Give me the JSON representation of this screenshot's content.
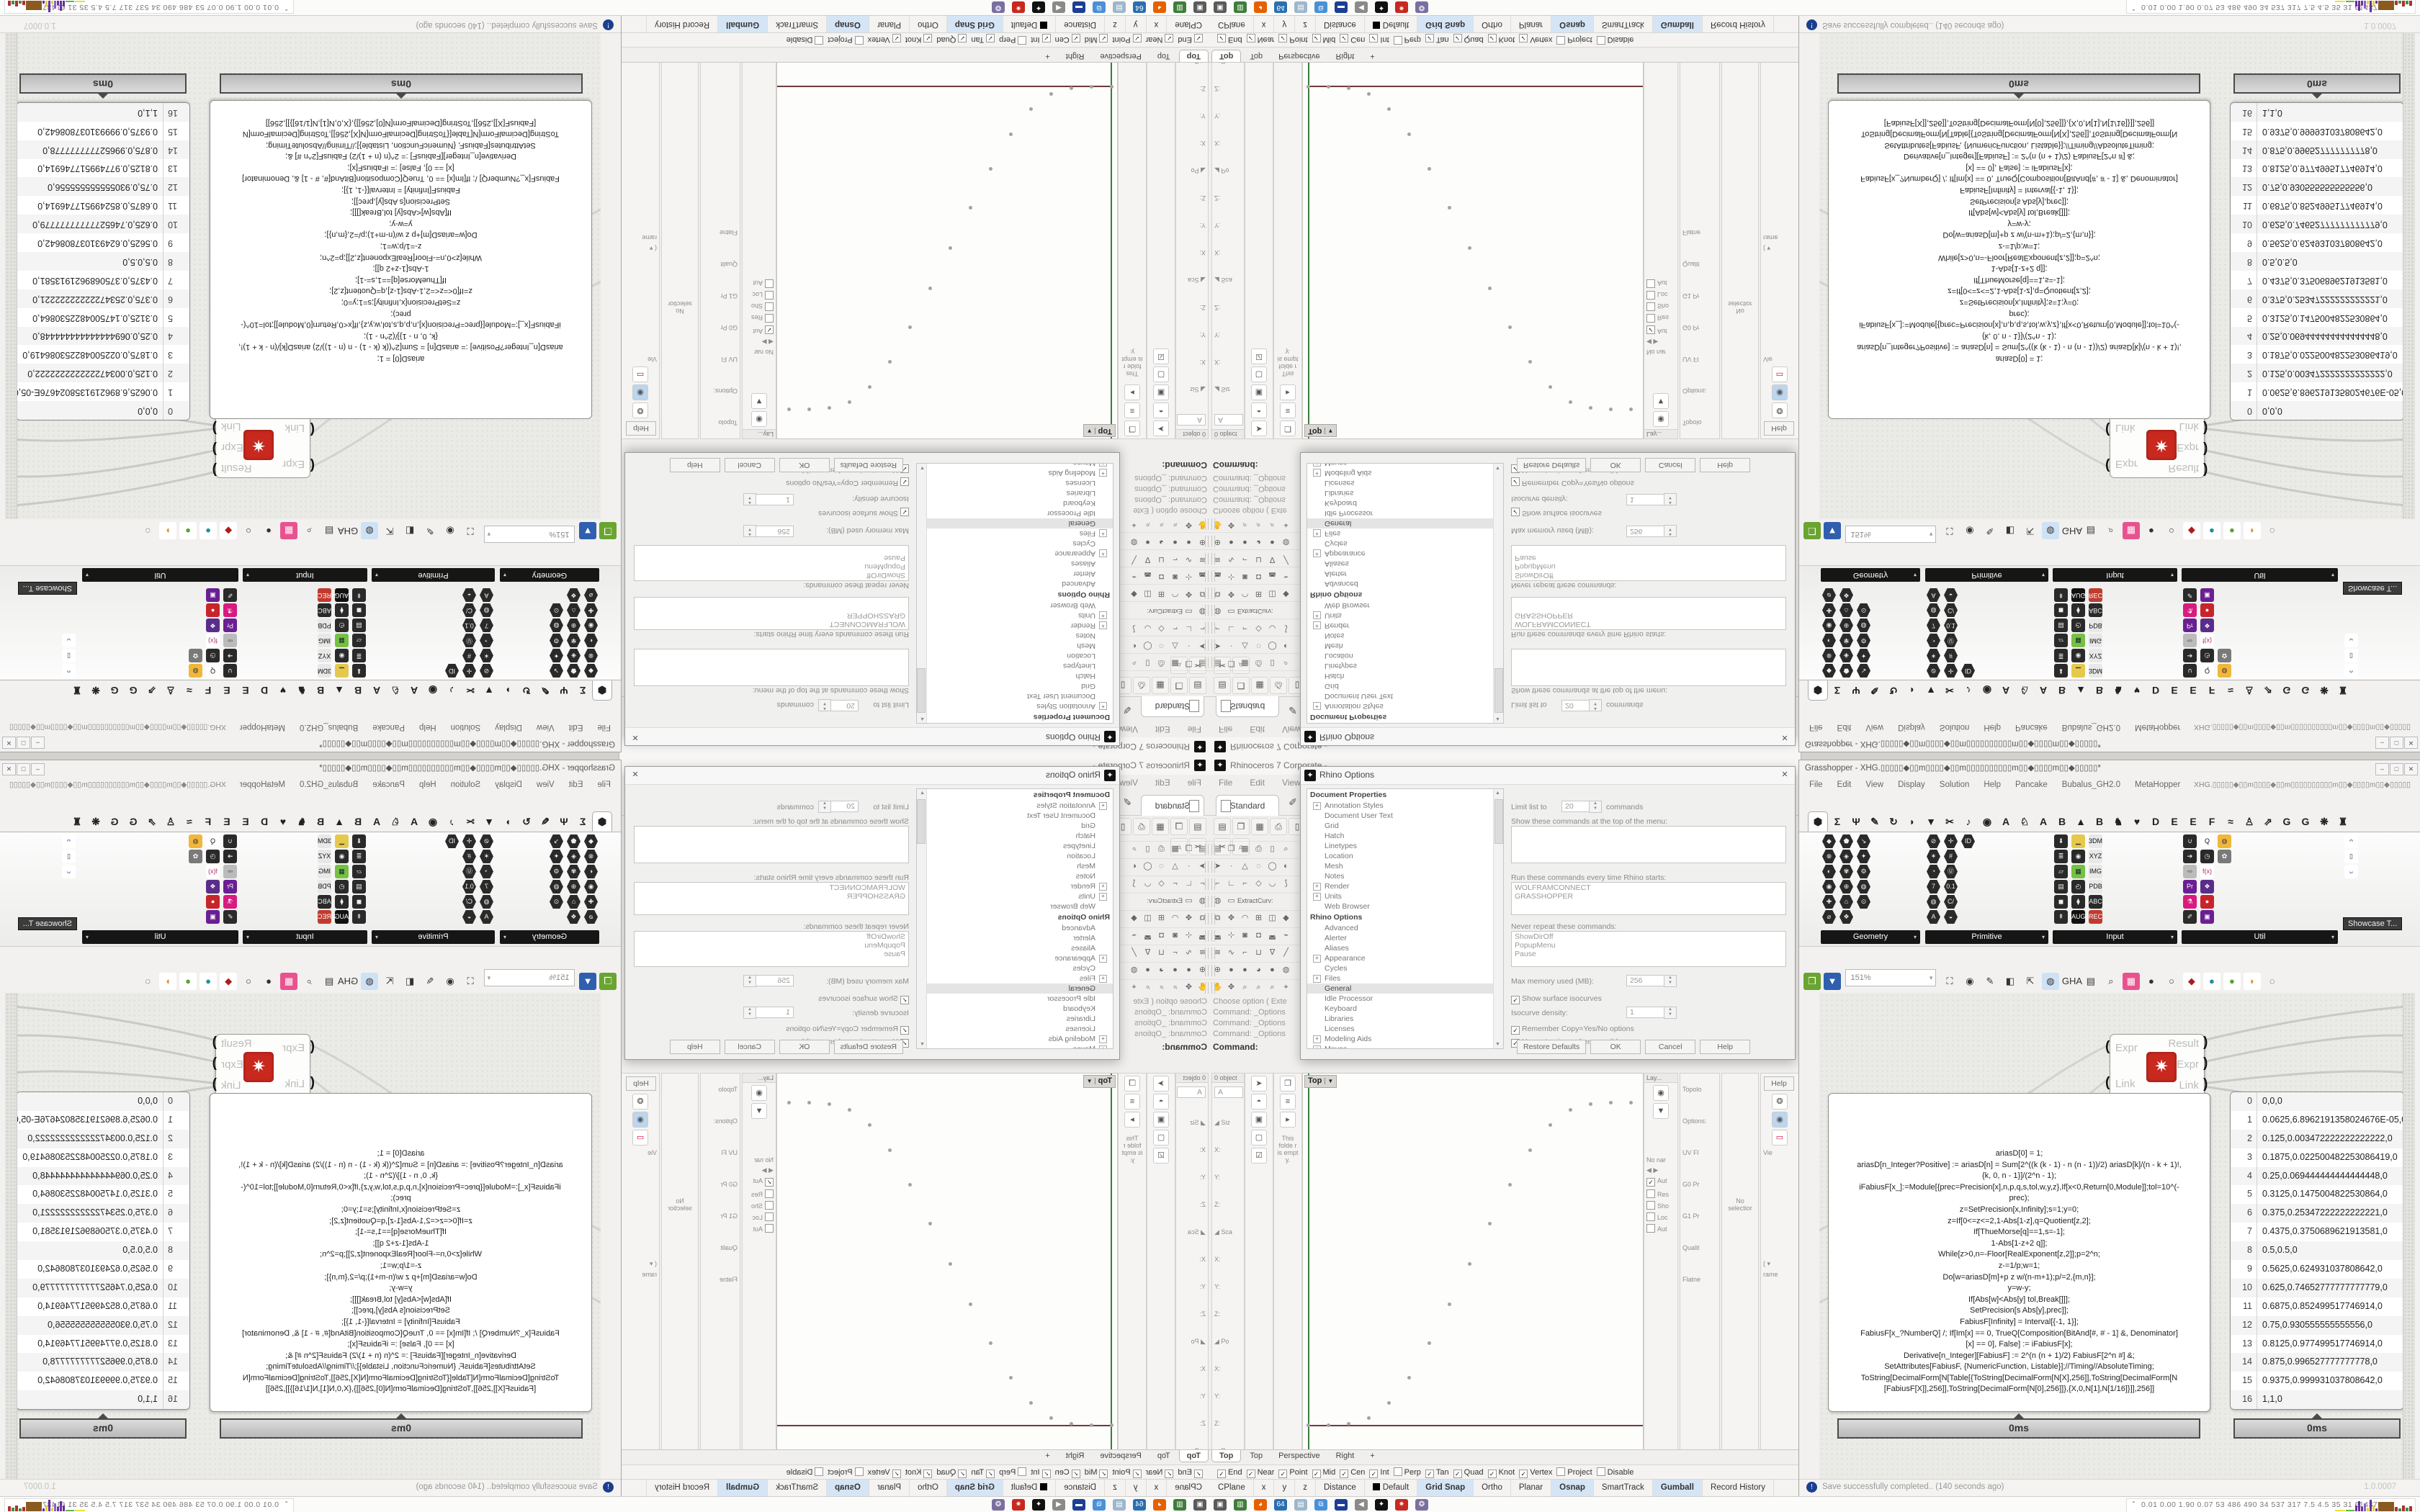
{
  "rhino": {
    "title": "Rhinoceros 7 Corporate -",
    "menus": [
      "File",
      "Edit",
      "View",
      "Curve"
    ],
    "toolbar_tab": "Standard",
    "toolbar_icons": [
      "▤",
      "❐",
      "▦",
      "⎙",
      "▯",
      "✂",
      "⌕"
    ],
    "side_rows": [
      {
        "icons": [
          "▤",
          "❐",
          "▦",
          "⎙",
          "▯",
          "⌕"
        ],
        "label": ""
      },
      {
        "icons": [
          "➤",
          "·",
          "△",
          "◌",
          "◯",
          "◐"
        ],
        "label": ""
      },
      {
        "icons": [
          "⌐",
          "∟",
          "⌐",
          "◇",
          "◡",
          "⟆"
        ],
        "label": ""
      },
      {
        "icons": [
          "◍",
          "▭"
        ],
        "label": "ExtractCurv:"
      },
      {
        "icons": [
          "⧉",
          "✥",
          "◠",
          "⊞",
          "◫",
          "◆"
        ],
        "label": ""
      },
      {
        "icons": [
          "◛",
          "⊹",
          "◙",
          "◘",
          "◛",
          "⌁"
        ],
        "label": ""
      },
      {
        "icons": [
          "≋",
          "∿",
          "⌐",
          "⊔",
          "∇",
          "╱"
        ],
        "label": ""
      },
      {
        "icons": [
          "⊕",
          "●",
          "●",
          "◕",
          "●",
          "◍"
        ],
        "label": ""
      },
      {
        "icons": [
          "✋",
          "✥",
          "⌕",
          "⌕",
          "⌕",
          "⌖"
        ],
        "label": ""
      }
    ],
    "command_lines": [
      "Choose option ( Exte",
      "Command: _Options",
      "Command: _Options",
      "Command: _Options"
    ],
    "command_prompt": "Command:",
    "dialog": {
      "title": "Rhino Options",
      "tree_header1": "Document Properties",
      "tree1": [
        {
          "t": "Annotation Styles",
          "e": 1
        },
        {
          "t": "Document User Text"
        },
        {
          "t": "Grid"
        },
        {
          "t": "Hatch"
        },
        {
          "t": "Linetypes"
        },
        {
          "t": "Location"
        },
        {
          "t": "Mesh"
        },
        {
          "t": "Notes"
        },
        {
          "t": "Render",
          "e": 1
        },
        {
          "t": "Units",
          "e": 1
        },
        {
          "t": "Web Browser"
        }
      ],
      "tree_header2": "Rhino Options",
      "tree2": [
        {
          "t": "Advanced"
        },
        {
          "t": "Alerter"
        },
        {
          "t": "Aliases"
        },
        {
          "t": "Appearance",
          "e": 1
        },
        {
          "t": "Cycles"
        },
        {
          "t": "Files",
          "e": 1
        },
        {
          "t": "General",
          "s": 1
        },
        {
          "t": "Idle Processor"
        },
        {
          "t": "Keyboard"
        },
        {
          "t": "Libraries"
        },
        {
          "t": "Licenses"
        },
        {
          "t": "Modeling Aids",
          "e": 1
        },
        {
          "t": "Mouse",
          "e": 1
        },
        {
          "t": "Plug-ins"
        },
        {
          "t": "RhinoScript"
        },
        {
          "t": "Selection Menu"
        },
        {
          "t": "Toolbars",
          "e": 1
        }
      ],
      "general": {
        "limit_label": "Limit list to",
        "limit_value": "20",
        "limit_suffix": "commands",
        "show_label": "Show these commands at the top of the menu:",
        "run_label": "Run these commands every time Rhino starts:",
        "run_value": "WOLFRAMCONNECT\nGRASSHOPPER",
        "never_label": "Never repeat these commands:",
        "never_value": "ShowDirOff\nPopupMenu\nPause",
        "mem_label": "Max memory used (MB):",
        "mem_value": "256",
        "iso_check": "Show surface isocurves",
        "density_label": "Isocurve density:",
        "density_value": "1",
        "copy_check": "Remember Copy=Yes/No options",
        "extrusion_check": "Use extrusions when possible"
      },
      "buttons": [
        "Restore Defaults",
        "OK",
        "Cancel",
        "Help"
      ]
    },
    "viewport": {
      "label": "Top",
      "tabs": [
        {
          "l": "Top",
          "act": 1
        },
        {
          "l": "Top"
        },
        {
          "l": "Perspective"
        },
        {
          "l": "Right"
        },
        {
          "l": "+"
        }
      ],
      "points": [
        [
          0,
          0
        ],
        [
          0.0625,
          6.89e-05
        ],
        [
          0.125,
          0.00347
        ],
        [
          0.1875,
          0.0225
        ],
        [
          0.25,
          0.0694
        ],
        [
          0.3125,
          0.1475
        ],
        [
          0.375,
          0.2535
        ],
        [
          0.4375,
          0.3751
        ],
        [
          0.5,
          0.5
        ],
        [
          0.5625,
          0.6249
        ],
        [
          0.625,
          0.7465
        ],
        [
          0.6875,
          0.8525
        ],
        [
          0.75,
          0.9306
        ],
        [
          0.8125,
          0.9775
        ],
        [
          0.875,
          0.9965
        ],
        [
          0.9375,
          0.9999
        ],
        [
          1,
          1
        ]
      ]
    },
    "osnap": [
      {
        "l": "End",
        "c": 1
      },
      {
        "l": "Near",
        "c": 1
      },
      {
        "l": "Point",
        "c": 1
      },
      {
        "l": "Mid",
        "c": 1
      },
      {
        "l": "Cen",
        "c": 1
      },
      {
        "l": "Int",
        "c": 1
      },
      {
        "l": "Perp"
      },
      {
        "l": "Tan",
        "c": 1
      },
      {
        "l": "Quad",
        "c": 1
      },
      {
        "l": "Knot",
        "c": 1
      },
      {
        "l": "Vertex",
        "c": 1
      },
      {
        "l": "Project"
      },
      {
        "l": "Disable"
      }
    ],
    "status": [
      {
        "l": "CPlane"
      },
      {
        "l": "x"
      },
      {
        "l": "y"
      },
      {
        "l": "z"
      },
      {
        "l": "Distance"
      },
      {
        "l": "Default",
        "sw": 1
      },
      {
        "l": "Grid Snap",
        "h": 1
      },
      {
        "l": "Ortho"
      },
      {
        "l": "Planar"
      },
      {
        "l": "Osnap",
        "h": 1
      },
      {
        "l": "SmartTrack"
      },
      {
        "l": "Gumball",
        "h": 1
      },
      {
        "l": "Record History"
      },
      {
        "l": "Filter"
      }
    ],
    "panels": {
      "objects": "0 object",
      "filter_value": "A",
      "prop_rows": [
        "◢ Siz",
        "X:",
        "Y:",
        "Z:",
        "◢ Sca",
        "X:",
        "Y:",
        "Z:",
        "◢ Po",
        "X:",
        "Y:",
        "Z:",
        "◢ Ro"
      ],
      "mid_icons": [
        "➤",
        "◓",
        "▣",
        "▢",
        "☑"
      ],
      "empty_text": "This folde r is empt y.",
      "layers_tab": "Lay...",
      "no_name": "No nar",
      "checks": [
        {
          "l": "Aut",
          "c": 1
        },
        {
          "l": "Res"
        },
        {
          "l": "Sho"
        },
        {
          "l": "Loc"
        },
        {
          "l": "Aut"
        }
      ],
      "display_rows": [
        "Topolo",
        "Options:",
        "UV Fl",
        "G0 Pr",
        "G1 Pr",
        "Qualit",
        "Flatne"
      ],
      "no_selection": "No selectior",
      "help_btn": "Help",
      "view_label": "Vie",
      "frame_label": "rame"
    }
  },
  "grasshopper": {
    "title": "Grasshopper - XHG.▯▯▯▯▯◆▯▯m▯▯▯▯◆▯▯m▯▯▯▯▯▯▯▯▯▯m▯▯◆▯▯▯▯m▯▯◆▯▯▯▯▯*",
    "window_buttons": [
      "–",
      "□",
      "✕"
    ],
    "menus": [
      "File",
      "Edit",
      "View",
      "Display",
      "Solution",
      "Help",
      "Pancake",
      "Bubalus_GH2.0",
      "MetaHopper"
    ],
    "doc_label": "XHG.▯▯▯▯▯◆▯▯m▯▯▯▯◆▯▯m▯▯▯▯▯▯▯▯▯▯m▯▯◆▯▯▯▯m▯▯◆▯▯▯▯▯",
    "tabs": [
      {
        "g": "⬢",
        "a": 1
      },
      {
        "g": "Σ"
      },
      {
        "g": "Ψ"
      },
      {
        "g": "✎"
      },
      {
        "g": "↻"
      },
      {
        "g": "◗"
      },
      {
        "g": "▼"
      },
      {
        "g": "✂"
      },
      {
        "g": "♪"
      },
      {
        "g": "◉"
      },
      {
        "g": "A"
      },
      {
        "g": "♘"
      },
      {
        "g": "A"
      },
      {
        "g": "B"
      },
      {
        "g": "▲"
      },
      {
        "g": "B"
      },
      {
        "g": "♞"
      },
      {
        "g": "♥"
      },
      {
        "g": "D"
      },
      {
        "g": "E"
      },
      {
        "g": "E"
      },
      {
        "g": "F"
      },
      {
        "g": "≈"
      },
      {
        "g": "♙"
      },
      {
        "g": "⇗"
      },
      {
        "g": "G"
      },
      {
        "g": "G"
      },
      {
        "g": "❋"
      },
      {
        "g": "♜"
      }
    ],
    "palette_groups": [
      {
        "label": "Geometry"
      },
      {
        "label": "Primitive"
      },
      {
        "label": "Input"
      },
      {
        "label": "Util"
      }
    ],
    "pal1": [
      [
        "◆"
      ],
      [
        "⊗"
      ],
      [
        "◐"
      ],
      [
        "◉"
      ],
      [
        "✚"
      ],
      [
        "⌀"
      ],
      [
        "⬟"
      ],
      [
        "◈"
      ],
      [
        "✾"
      ],
      [
        "⊕"
      ],
      [
        "⌂"
      ],
      [
        "❖"
      ],
      [
        "↘"
      ],
      [
        "✦"
      ],
      [
        "⚙"
      ],
      [
        "◍"
      ],
      [
        "⊙"
      ]
    ],
    "pal2": [
      [
        "⊘"
      ],
      [
        "✶"
      ],
      [
        "◔"
      ],
      [
        "7"
      ],
      [
        "◍"
      ],
      [
        "A"
      ],
      [
        "✛"
      ],
      [
        "#"
      ],
      [
        "Ⓤ"
      ],
      [
        "0.1"
      ],
      [
        "C/"
      ],
      [
        "◒"
      ],
      [
        "ID"
      ]
    ],
    "pal3": [
      [
        "⬇"
      ],
      [
        "≣"
      ],
      [
        "▱"
      ],
      [
        "▤"
      ],
      [
        "◼"
      ],
      [
        "⇞"
      ],
      [
        "▁",
        "#e6c94c",
        "#333"
      ],
      [
        "◉"
      ],
      [
        "▦",
        "#76c043",
        "#123"
      ],
      [
        "◴"
      ],
      [
        "⧫"
      ],
      [
        "AUG",
        "#111",
        "#fff"
      ],
      [
        "3DM",
        "#e8e8e8",
        "#111"
      ],
      [
        "XYZ",
        "#e8e8e8",
        "#111"
      ],
      [
        "IMG",
        "#e8e8e8",
        "#111"
      ],
      [
        "PDB",
        "#e8e8e8",
        "#111"
      ],
      [
        "ABC"
      ],
      [
        "REC",
        "#c23a2e",
        "#fff"
      ]
    ],
    "pal4": [
      [
        "∪"
      ],
      [
        "➔"
      ],
      [
        "⇨",
        "#bbb",
        "#555"
      ],
      [
        "Pr",
        "#6a1f93",
        "#fff"
      ],
      [
        "⚗",
        "#d81b7f",
        "#fff"
      ],
      [
        "✐"
      ],
      [
        "Q",
        "#fff",
        "#111"
      ],
      [
        "◷"
      ],
      [
        "f(x)",
        "#fff",
        "#b0326e"
      ],
      [
        "❖",
        "#5a2d8a",
        "#fff"
      ],
      [
        "●",
        "#c7252b",
        "#fff"
      ],
      [
        "▣",
        "#6a1f93",
        "#fff"
      ],
      [
        "◍",
        "#f0b73c",
        "#333"
      ],
      [
        "✿",
        "#7a7a7a",
        "#fff"
      ]
    ],
    "pal5": [
      [
        "ᴖ",
        "#fff",
        "#1f4f9e"
      ],
      [
        "▯",
        "#fff",
        "#333"
      ],
      [
        "ᴗ",
        "#fff",
        "#1f4f9e"
      ]
    ],
    "tooltip": "Showcase T...",
    "zoom": "151%",
    "toolbar": [
      {
        "g": "❐",
        "c": "#6aa431",
        "f": "#fff",
        "n": "open-file-icon"
      },
      {
        "g": "▼",
        "c": "#2f5fae",
        "f": "#fff",
        "n": "save-file-icon"
      }
    ],
    "toolbar2": [
      {
        "g": "⛶",
        "n": "zoom-extents-icon"
      },
      {
        "g": "◉",
        "n": "preview-icon"
      },
      {
        "g": "✎",
        "n": "sketch-icon"
      },
      {
        "g": "◧",
        "n": "speaker-icon"
      },
      {
        "g": "⇱",
        "n": "gumball-icon"
      },
      {
        "g": "◍",
        "c": "#cfe2f5",
        "n": "globe-icon"
      },
      {
        "g": "GHA",
        "n": "gha-icon"
      },
      {
        "g": "▤",
        "n": "document-icon"
      },
      {
        "g": "⌕",
        "n": "find-icon"
      },
      {
        "g": "▦",
        "c": "#e8538f",
        "f": "#fff",
        "n": "cluster-icon"
      },
      {
        "g": "●",
        "n": "preview-dark-icon"
      },
      {
        "g": "○",
        "n": "preview-wire-icon"
      },
      {
        "g": "◆",
        "c": "#fff",
        "f": "#b01b1b",
        "n": "gem-icon"
      },
      {
        "g": "●",
        "f": "#1f8f9e",
        "c": "#fff",
        "n": "orb-teal-icon"
      },
      {
        "g": "●",
        "f": "#5aa431",
        "c": "#fff",
        "n": "orb-green-icon"
      },
      {
        "g": "◗",
        "f": "#e08a1e",
        "c": "#fff",
        "n": "orb-orange-icon"
      },
      {
        "g": "◌",
        "n": "selection-region-icon"
      }
    ],
    "component": {
      "in1": "Expr",
      "in2": "Link",
      "out1": "Result",
      "out2": "Expr",
      "out3": "Link",
      "time": "5ms"
    },
    "script_panel": {
      "time": "0ms",
      "lines": [
        "ariasD[0] = 1;",
        "ariasD[n_Integer?Positive] := ariasD[n] = Sum[2^((k (k - 1) - n (n - 1))/2) ariasD[k]/(n - k + 1)!,",
        "{k, 0, n - 1}]/(2^n - 1);",
        "iFabiusF[x_]:=Module[{prec=Precision[x],n,p,q,s,tol,w,y,z},If[x<0,Return[0,Module]];tol=10^(-",
        "prec);",
        "z=SetPrecision[x,Infinity];s=1;y=0;",
        "z=If[0<=z<=2,1-Abs[1-z],q=Quotient[z,2];",
        "If[ThueMorse[q]==1,s=-1];",
        "1-Abs[1-z+2 q]];",
        "While[z>0,n=-Floor[RealExponent[z,2]];p=2^n;",
        "z-=1/p;w=1;",
        "Do[w=ariasD[m]+p z w/(n-m+1);p/=2,{m,n}];",
        "y=w-y;",
        "If[Abs[w]<Abs[y] tol,Break[]]];",
        "SetPrecision[s Abs[y],prec]];",
        "FabiusF[Infinity] = Interval[{-1, 1}];",
        "FabiusF[x_?NumberQ] /; If[Im[x] == 0, TrueQ[Composition[BitAnd[#, # - 1] &, Denominator]",
        "[x] == 0], False] := iFabiusF[x];",
        "Derivative[n_Integer][FabiusF] := 2^(n (n + 1)/2) FabiusF[2^n #] &;",
        "SetAttributes[FabiusF, {NumericFunction, Listable}];//Timing//AbsoluteTiming;",
        "",
        "ToString[DecimalForm[N[Table[{ToString[DecimalForm[N[X],256]],ToString[DecimalForm[N",
        "[FabiusF[X]],256]],ToString[DecimalForm[N[0],256]]},{X,0,N[1],N[1/16]}]],256]]"
      ]
    },
    "data_panel": {
      "time": "0ms",
      "rows": [
        {
          "i": "0",
          "v": "0,0,0"
        },
        {
          "i": "1",
          "v": "0.0625,6.8962191358024676E-05,0"
        },
        {
          "i": "2",
          "v": "0.125,0.003472222222222222,0"
        },
        {
          "i": "3",
          "v": "0.1875,0.022500482253086419,0"
        },
        {
          "i": "4",
          "v": "0.25,0.069444444444444448,0"
        },
        {
          "i": "5",
          "v": "0.3125,0.1475004822530864,0"
        },
        {
          "i": "6",
          "v": "0.375,0.25347222222222221,0"
        },
        {
          "i": "7",
          "v": "0.4375,0.3750689621913581,0"
        },
        {
          "i": "8",
          "v": "0.5,0.5,0"
        },
        {
          "i": "9",
          "v": "0.5625,0.624931037808642,0"
        },
        {
          "i": "10",
          "v": "0.625,0.74652777777777779,0"
        },
        {
          "i": "11",
          "v": "0.6875,0.852499517746914,0"
        },
        {
          "i": "12",
          "v": "0.75,0.930555555555556,0"
        },
        {
          "i": "13",
          "v": "0.8125,0.977499517746914,0"
        },
        {
          "i": "14",
          "v": "0.875,0.996527777777778,0"
        },
        {
          "i": "15",
          "v": "0.9375,0.999931037808642,0"
        },
        {
          "i": "16",
          "v": "1,1,0"
        }
      ]
    },
    "statusbar": {
      "message": "Save successfully completed.. (140 seconds ago)",
      "version": "1.0.0007"
    }
  },
  "taskbar": {
    "icons": [
      {
        "g": "▣",
        "c": "#5a5a5a",
        "n": "monitor-camera-icon"
      },
      {
        "g": "▥",
        "c": "#3f7d3a",
        "n": "green-utility-icon"
      },
      {
        "g": "◕",
        "c": "#e66000",
        "n": "firefox-icon"
      },
      {
        "g": "64",
        "c": "#2a6fb0",
        "n": "floppy64-icon"
      },
      {
        "g": "▤",
        "c": "#9db7cc",
        "n": "notepad-icon"
      },
      {
        "g": "⧉",
        "c": "#4a90d9",
        "n": "screenshare-icon"
      },
      {
        "g": "▬",
        "c": "#1c3f94",
        "n": "monitor-icon"
      },
      {
        "g": "◀",
        "c": "#8a8a8a",
        "n": "speaker-icon"
      },
      {
        "g": "✦",
        "c": "#111111",
        "n": "rhino-icon"
      },
      {
        "g": "✷",
        "c": "#c8281e",
        "n": "mathematica-icon"
      },
      {
        "g": "❂",
        "c": "#7a6fa0",
        "n": "paint-icon"
      }
    ],
    "tray_numbers": "0.01 0.00 1.90 0.07  53  486  490  34  537  317  7.5  4.5  35  31 61437936",
    "spark": [
      [
        "#e8e23a",
        2,
        14
      ],
      [
        "#59b84c",
        2,
        12
      ],
      [
        "#6a2f9e",
        8,
        3
      ],
      [
        "#6a2f9e",
        14,
        3
      ],
      [
        "#6a2f9e",
        6,
        3
      ],
      [
        "#8a62c9",
        11,
        3
      ],
      [
        "#e0d23a",
        5,
        3
      ],
      [
        "#6a2f9e",
        16,
        3
      ],
      [
        "#e0d23a",
        8,
        3
      ],
      [
        "#6a2f9e",
        4,
        3
      ],
      [
        "#8a5a1f",
        13,
        22
      ],
      [
        "#b03030",
        6,
        4
      ],
      [
        "#3f8f3f",
        4,
        4
      ],
      [
        "#b03030",
        8,
        4
      ],
      [
        "#3f8f3f",
        5,
        4
      ],
      [
        "#b03030",
        7,
        4
      ]
    ]
  }
}
